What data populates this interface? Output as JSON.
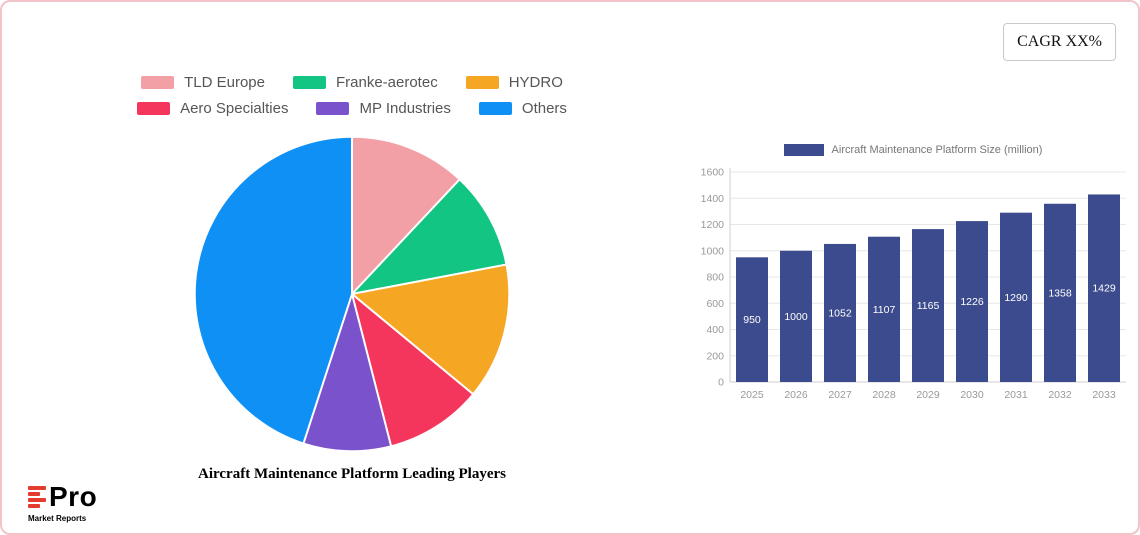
{
  "page": {
    "cagr_label": "CAGR XX%"
  },
  "logo": {
    "name": "Pro",
    "subtitle": "Market Reports"
  },
  "chart_data": [
    {
      "type": "pie",
      "title": "Aircraft Maintenance Platform Leading Players",
      "labels": [
        "TLD Europe",
        "Franke-aerotec",
        "HYDRO",
        "Aero Specialties",
        "MP Industries",
        "Others"
      ],
      "values": [
        12,
        10,
        14,
        10,
        9,
        45
      ],
      "colors": [
        "#f2a0a6",
        "#12c583",
        "#f5a623",
        "#f5365c",
        "#7a52cc",
        "#0e90f5"
      ],
      "legend_position": "top",
      "start_angle_deg": 0,
      "direction": "clockwise"
    },
    {
      "type": "bar",
      "legend": "Aircraft Maintenance Platform Size (million)",
      "categories": [
        "2025",
        "2026",
        "2027",
        "2028",
        "2029",
        "2030",
        "2031",
        "2032",
        "2033"
      ],
      "values": [
        950,
        1000,
        1052,
        1107,
        1165,
        1226,
        1290,
        1358,
        1429
      ],
      "bar_color": "#3c4b8d",
      "ylim": [
        0,
        1600
      ],
      "ytick_step": 200,
      "yticks": [
        0,
        200,
        400,
        600,
        800,
        1000,
        1200,
        1400,
        1600
      ],
      "grid": true,
      "value_labels": "inside-white"
    }
  ]
}
